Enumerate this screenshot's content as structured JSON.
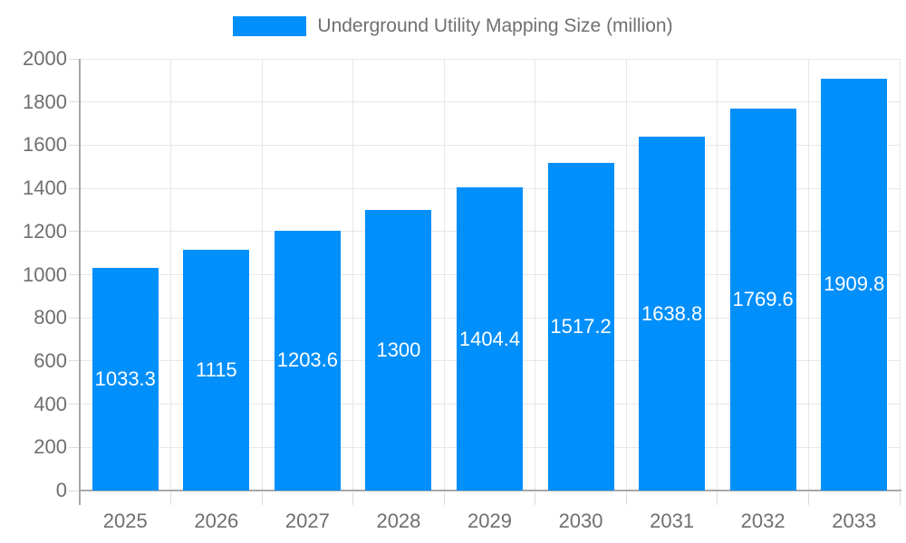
{
  "legend": {
    "label": "Underground Utility Mapping Size (million)",
    "swatch_color": "#008FFB"
  },
  "chart_data": {
    "type": "bar",
    "title": "Underground Utility Mapping Size (million)",
    "categories": [
      "2025",
      "2026",
      "2027",
      "2028",
      "2029",
      "2030",
      "2031",
      "2032",
      "2033"
    ],
    "values": [
      1033.3,
      1115,
      1203.6,
      1300,
      1404.4,
      1517.2,
      1638.8,
      1769.6,
      1909.8
    ],
    "bar_labels": [
      "1033.3",
      "1115",
      "1203.6",
      "1300",
      "1404.4",
      "1517.2",
      "1638.8",
      "1769.6",
      "1909.8"
    ],
    "xlabel": "",
    "ylabel": "",
    "ylim": [
      0,
      2000
    ],
    "ytick_step": 200,
    "yticks": [
      0,
      200,
      400,
      600,
      800,
      1000,
      1200,
      1400,
      1600,
      1800,
      2000
    ],
    "ytick_labels": [
      "0",
      "200",
      "400",
      "600",
      "800",
      "1000",
      "1200",
      "1400",
      "1600",
      "1800",
      "2000"
    ],
    "grid": true,
    "legend_position": "top",
    "colors": {
      "bar": "#008FFB",
      "bar_label_text": "#ffffff",
      "axis_label_text": "#6f6f6f",
      "legend_text": "#707070",
      "grid_line": "#e7e7e7",
      "tick_line": "#dcdcdc",
      "axis_line": "#a8a8a8"
    }
  }
}
